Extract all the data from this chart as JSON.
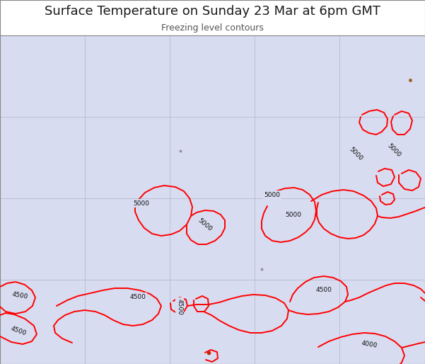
{
  "title": "Surface Temperature on Sunday 23 Mar at 6pm GMT",
  "subtitle": "Freezing level contours",
  "title_fontsize": 13,
  "subtitle_fontsize": 9,
  "bg_map_color": "#d8dcf0",
  "contour_color": "#ff0000",
  "contour_linewidth": 1.4,
  "label_fontsize": 6.5,
  "grid_color": "#b0b4cc",
  "grid_linewidth": 0.5,
  "border_color": "#888888",
  "border_linewidth": 0.8,
  "title_bg_color": "#ffffff",
  "fig_width": 6.01,
  "fig_height": 5.14,
  "dpi": 100
}
